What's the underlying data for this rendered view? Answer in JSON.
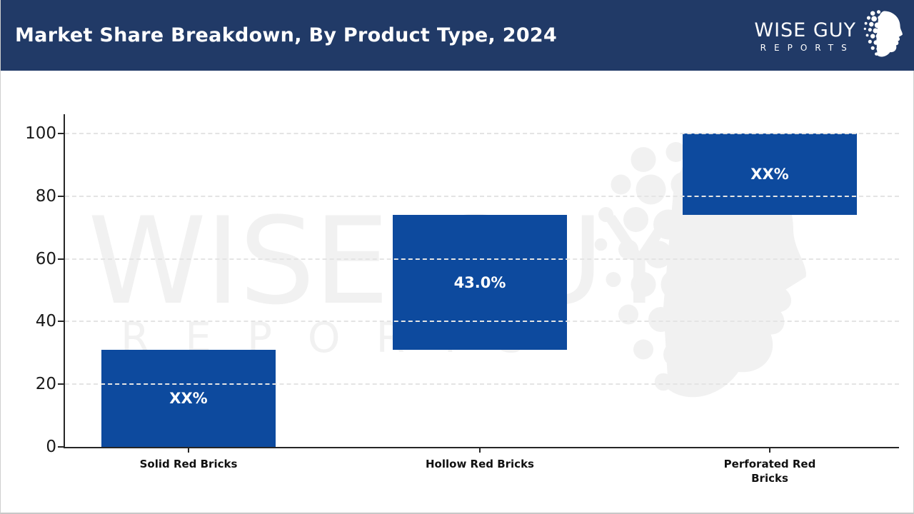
{
  "header": {
    "title": "Market Share Breakdown, By Product Type, 2024"
  },
  "logo": {
    "line1": "WISE GUY",
    "line2": "REPORTS"
  },
  "watermark": {
    "line1": "WISE GUY",
    "line2": "REPORTS"
  },
  "colors": {
    "header_bg": "#213a67",
    "bar_fill": "#0d4a9e",
    "grid": "#e4e4e4",
    "axis": "#262626",
    "watermark": "#f1f1f1"
  },
  "chart_data": {
    "type": "bar",
    "subtype": "floating-waterfall",
    "title": "Market Share Breakdown, By Product Type, 2024",
    "categories": [
      "Solid Red Bricks",
      "Hollow Red Bricks",
      "Perforated Red Bricks"
    ],
    "series": [
      {
        "category": "Solid Red Bricks",
        "start": 0,
        "end": 31,
        "value": 31,
        "label": "XX%"
      },
      {
        "category": "Hollow Red Bricks",
        "start": 31,
        "end": 74,
        "value": 43,
        "label": "43.0%"
      },
      {
        "category": "Perforated Red Bricks",
        "start": 74,
        "end": 100,
        "value": 26,
        "label": "XX%"
      }
    ],
    "xlabel": "",
    "ylabel": "",
    "ylim": [
      0,
      100
    ],
    "yticks": [
      0,
      20,
      40,
      60,
      80,
      100
    ],
    "grid": "horizontal-dashed-on-top",
    "legend": "none"
  }
}
